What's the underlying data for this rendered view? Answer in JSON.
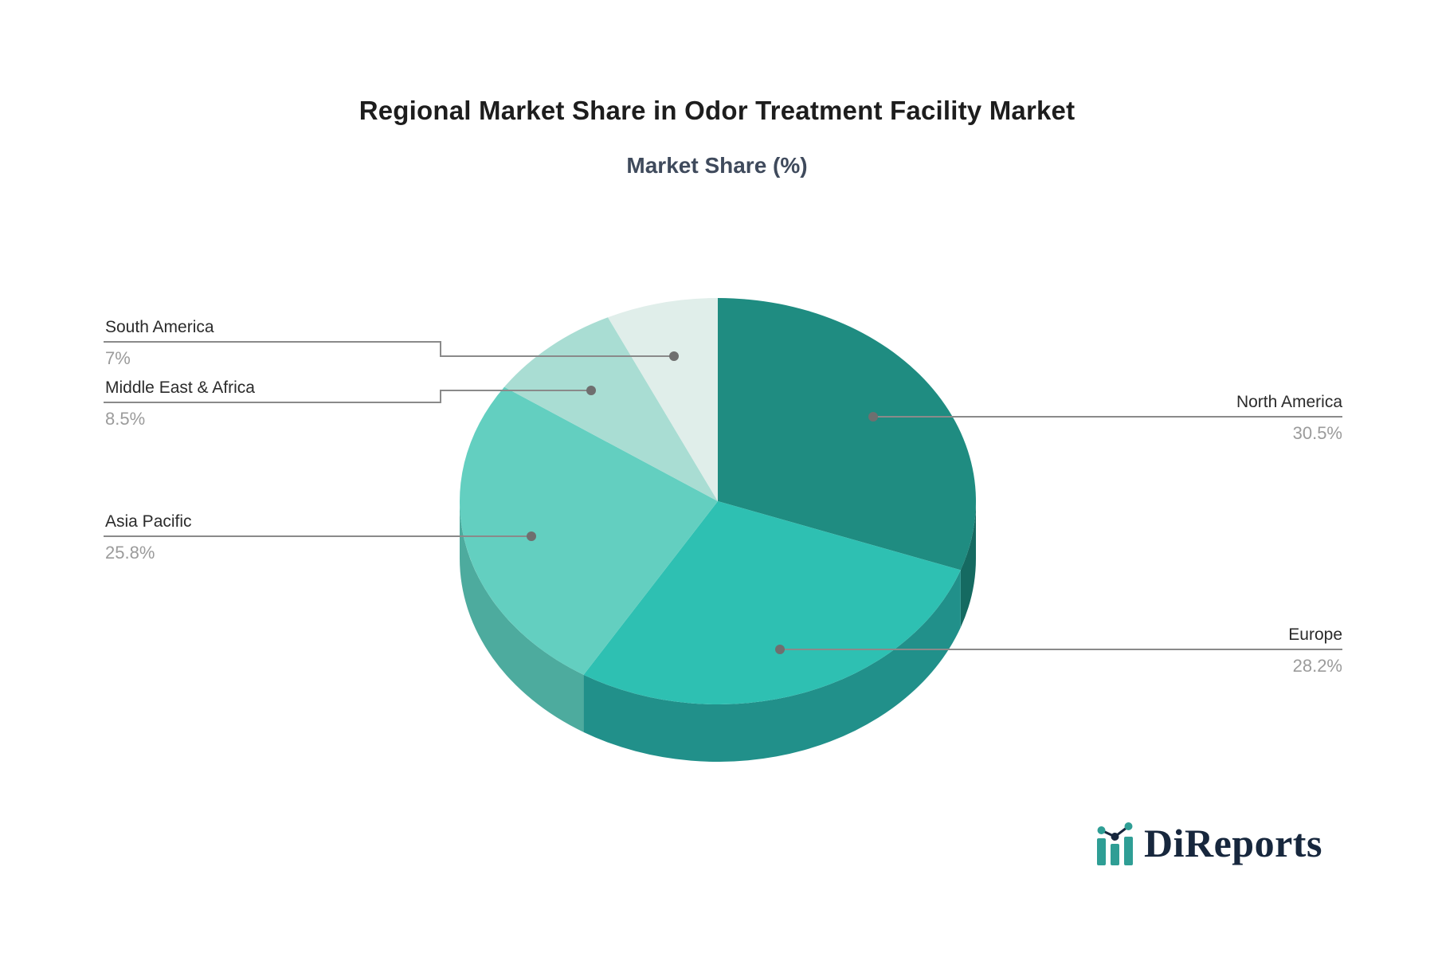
{
  "title": "Regional Market Share in Odor Treatment Facility Market",
  "subtitle": "Market Share (%)",
  "brand": {
    "name": "DiReports",
    "text_color": "#17273d",
    "accent_color": "#2f9e95"
  },
  "chart_data": {
    "type": "pie",
    "title": "Regional Market Share in Odor Treatment Facility Market",
    "subtitle": "Market Share (%)",
    "unit": "%",
    "effect_3d": true,
    "start_angle_deg": 0,
    "direction": "clockwise",
    "legend_position": "callout-labels",
    "slices": [
      {
        "label": "North America",
        "value": 30.5,
        "display": "30.5%",
        "color": "#1f8c81",
        "side_color": "#156a61",
        "label_side": "right"
      },
      {
        "label": "Europe",
        "value": 28.2,
        "display": "28.2%",
        "color": "#2ec0b2",
        "side_color": "#21908a",
        "label_side": "right"
      },
      {
        "label": "Asia Pacific",
        "value": 25.8,
        "display": "25.8%",
        "color": "#63cfc0",
        "side_color": "#4dab9e",
        "label_side": "left"
      },
      {
        "label": "Middle East & Africa",
        "value": 8.5,
        "display": "8.5%",
        "color": "#a9ddd3",
        "side_color": "#8bc0b5",
        "label_side": "left"
      },
      {
        "label": "South America",
        "value": 7,
        "display": "7%",
        "color": "#e0eeea",
        "side_color": "#c3d6d1",
        "label_side": "left"
      }
    ],
    "label_color": "#2b2b2b",
    "value_color": "#9b9b9b",
    "connector_color": "#8a8a8a"
  }
}
